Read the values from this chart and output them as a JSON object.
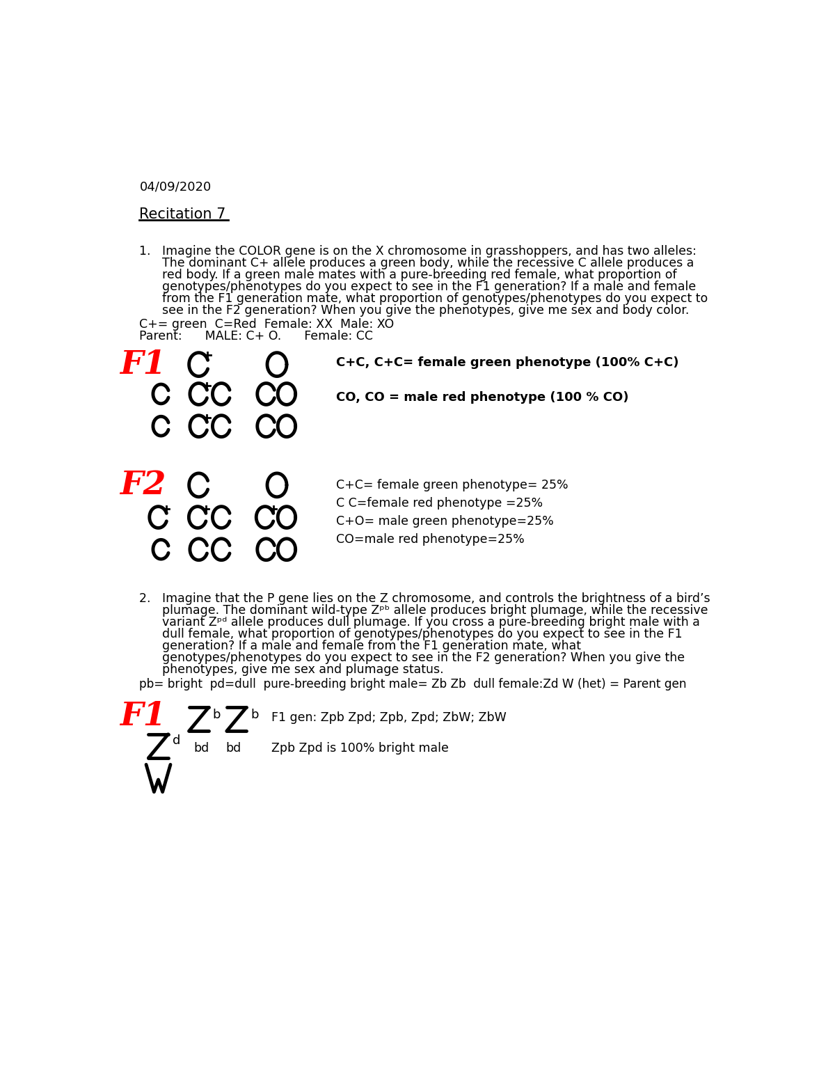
{
  "bg_color": "#ffffff",
  "date": "04/09/2020",
  "title": "Recitation 7",
  "q1_lines": [
    "1.   Imagine the COLOR gene is on the X chromosome in grasshoppers, and has two alleles:",
    "      The dominant C+ allele produces a green body, while the recessive C allele produces a",
    "      red body. If a green male mates with a pure-breeding red female, what proportion of",
    "      genotypes/phenotypes do you expect to see in the F1 generation? If a male and female",
    "      from the F1 generation mate, what proportion of genotypes/phenotypes do you expect to",
    "      see in the F2 generation? When you give the phenotypes, give me sex and body color."
  ],
  "q1_note1": "C+= green  C=Red  Female: XX  Male: XO",
  "q1_note2": "Parent:      MALE: C+ O.      Female: CC",
  "f1_label": "F1",
  "f1_right1": "C+C, C+C= female green phenotype (100% C+C)",
  "f1_right2": "CO, CO = male red phenotype (100 % CO)",
  "f2_label": "F2",
  "f2_right1": "C+C= female green phenotype= 25%",
  "f2_right2": "C C=female red phenotype =25%",
  "f2_right3": "C+O= male green phenotype=25%",
  "f2_right4": "CO=male red phenotype=25%",
  "q2_lines": [
    "2.   Imagine that the P gene lies on the Z chromosome, and controls the brightness of a bird’s",
    "      plumage. The dominant wild-type Zᵖᵇ allele produces bright plumage, while the recessive",
    "      variant Zᵖᵈ allele produces dull plumage. If you cross a pure-breeding bright male with a",
    "      dull female, what proportion of genotypes/phenotypes do you expect to see in the F1",
    "      generation? If a male and female from the F1 generation mate, what",
    "      genotypes/phenotypes do you expect to see in the F2 generation? When you give the",
    "      phenotypes, give me sex and plumage status."
  ],
  "q2_note1": "pb= bright  pd=dull  pure-breeding bright male= Zb Zb  dull female:Zd W (het) = Parent gen",
  "f1b_label": "F1",
  "f1b_right1": "F1 gen: Zpb Zpd; Zpb, Zpd; ZbW; ZbW",
  "f1b_note1": "Zpb Zpd is 100% bright male"
}
